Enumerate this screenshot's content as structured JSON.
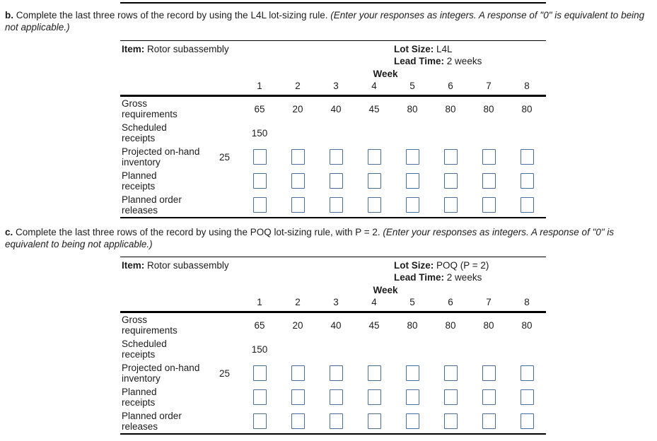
{
  "questions": {
    "b": {
      "prefix": "b.",
      "text": "Complete the last three rows of the record by using the L4L lot-sizing rule.",
      "hint": "(Enter your responses as integers. A response of \"0\" is equivalent to being not applicable.)"
    },
    "c": {
      "prefix": "c.",
      "text": "Complete the last three rows of the record by using the POQ lot-sizing rule, with P = 2.",
      "hint": "(Enter your responses as integers. A response of \"0\" is equivalent to being not applicable.)"
    }
  },
  "colors": {
    "input_border": "#4a6d9e",
    "line": "#000000",
    "text": "#1c1c1c"
  },
  "records": [
    {
      "item_label": "Item:",
      "item": "Rotor subassembly",
      "lot_size_label": "Lot Size:",
      "lot_size": "L4L",
      "lead_time_label": "Lead Time:",
      "lead_time": "2 weeks",
      "week_header": "Week",
      "weeks": [
        "1",
        "2",
        "3",
        "4",
        "5",
        "6",
        "7",
        "8"
      ],
      "rows": {
        "gross_requirements": {
          "lines": [
            "Gross",
            "requirements"
          ],
          "values": [
            "65",
            "20",
            "40",
            "45",
            "80",
            "80",
            "80",
            "80"
          ]
        },
        "scheduled_receipts": {
          "lines": [
            "Scheduled",
            "receipts"
          ],
          "values": [
            "150",
            "",
            "",
            "",
            "",
            "",
            "",
            ""
          ]
        },
        "projected_on_hand": {
          "lines": [
            "Projected on-hand",
            "inventory"
          ],
          "beginning": "25"
        },
        "planned_receipts": {
          "lines": [
            "Planned",
            "receipts"
          ]
        },
        "planned_order_releases": {
          "lines": [
            "Planned order",
            "releases"
          ]
        }
      }
    },
    {
      "item_label": "Item:",
      "item": "Rotor subassembly",
      "lot_size_label": "Lot Size:",
      "lot_size": "POQ (P = 2)",
      "lead_time_label": "Lead Time:",
      "lead_time": "2 weeks",
      "week_header": "Week",
      "weeks": [
        "1",
        "2",
        "3",
        "4",
        "5",
        "6",
        "7",
        "8"
      ],
      "rows": {
        "gross_requirements": {
          "lines": [
            "Gross",
            "requirements"
          ],
          "values": [
            "65",
            "20",
            "40",
            "45",
            "80",
            "80",
            "80",
            "80"
          ]
        },
        "scheduled_receipts": {
          "lines": [
            "Scheduled",
            "receipts"
          ],
          "values": [
            "150",
            "",
            "",
            "",
            "",
            "",
            "",
            ""
          ]
        },
        "projected_on_hand": {
          "lines": [
            "Projected on-hand",
            "inventory"
          ],
          "beginning": "25"
        },
        "planned_receipts": {
          "lines": [
            "Planned",
            "receipts"
          ]
        },
        "planned_order_releases": {
          "lines": [
            "Planned order",
            "releases"
          ]
        }
      }
    }
  ]
}
